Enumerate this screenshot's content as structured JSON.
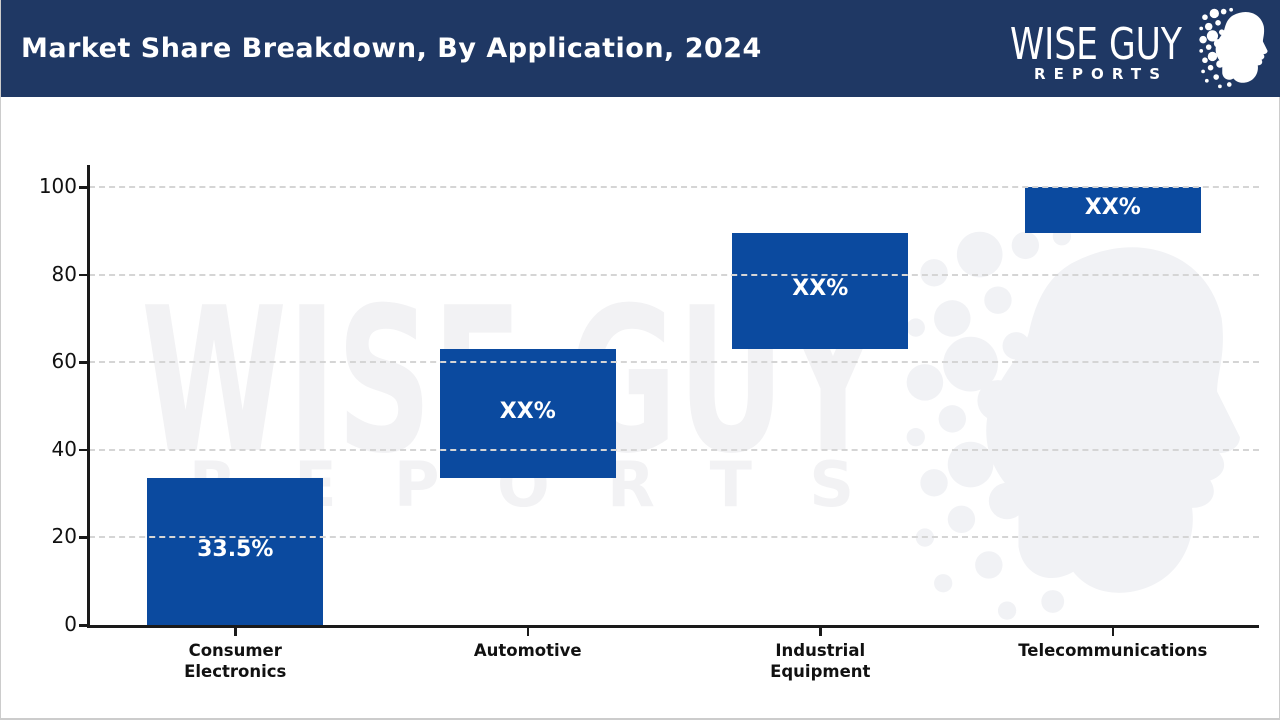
{
  "header": {
    "title": "Market Share Breakdown, By Application, 2024",
    "bg_color": "#1f3864",
    "logo": {
      "line1": "WISE GUY",
      "line2": "REPORTS",
      "icon": "dotted-head-profile"
    }
  },
  "watermark": {
    "line1": "WISE GUY",
    "line2": "REPORTS",
    "icon": "dotted-head-profile",
    "color": "#f2f2f4"
  },
  "chart_data": {
    "type": "bar",
    "subtype": "waterfall",
    "title": "Market Share Breakdown, By Application, 2024",
    "categories": [
      "Consumer\nElectronics",
      "Automotive",
      "Industrial\nEquipment",
      "Telecommunications"
    ],
    "series": [
      {
        "name": "Market Share (%)",
        "segments": [
          {
            "category": "Consumer Electronics",
            "start": 0,
            "end": 33.5,
            "value": 33.5,
            "label": "33.5%"
          },
          {
            "category": "Automotive",
            "start": 33.5,
            "end": 63,
            "value": 29.5,
            "label": "XX%"
          },
          {
            "category": "Industrial Equipment",
            "start": 63,
            "end": 89.5,
            "value": 26.5,
            "label": "XX%"
          },
          {
            "category": "Telecommunications",
            "start": 89.5,
            "end": 100,
            "value": 10.5,
            "label": "XX%"
          }
        ]
      }
    ],
    "xlabel": "",
    "ylabel": "",
    "ylim": [
      0,
      105
    ],
    "yticks": [
      0,
      20,
      40,
      60,
      80,
      100
    ],
    "grid": "horizontal-dashed",
    "legend": "none",
    "bar_color": "#0b4a9f",
    "bar_label_color": "#ffffff",
    "axis_color": "#1a1a1a",
    "gridline_color": "#d5d5d5"
  }
}
